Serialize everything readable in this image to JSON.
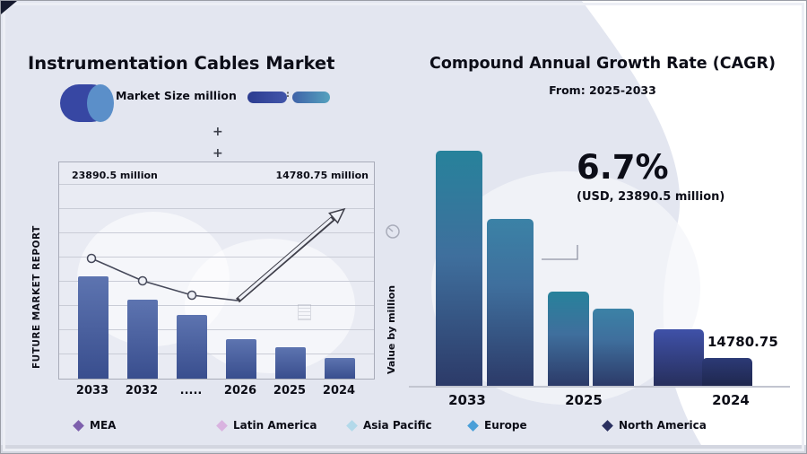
{
  "left": {
    "title": "Instrumentation Cables Market",
    "kicker": "Market Size million",
    "pill_separator": ":",
    "chart_top_left": "23890.5 million",
    "chart_top_right": "14780.75 million"
  },
  "right": {
    "title": "Compound Annual Growth Rate (CAGR)",
    "subtitle": "From: 2025-2033",
    "cagr": "6.7%",
    "cagr_detail": "(USD, 23890.5 million)",
    "axis_label": "Value by million",
    "peak_label": "14780.75"
  },
  "watermark_text": "FUTURE MARKET REPORT",
  "decorations": {
    "plus": "+"
  },
  "legend": [
    {
      "label": "MEA",
      "color": "#7d5fad"
    },
    {
      "label": "Latin America",
      "color": "#d9b3e0"
    },
    {
      "label": "Asia Pacific",
      "color": "#b3d9ea"
    },
    {
      "label": "Europe",
      "color": "#4a9fd8"
    },
    {
      "label": "North America",
      "color": "#2a3060"
    }
  ],
  "chart_data": [
    {
      "id": "market-size-by-year",
      "type": "bar",
      "title": "Instrumentation Cables Market - Market Size million",
      "categories": [
        "2033",
        "2032",
        ".....",
        "2026",
        "2025",
        "2024"
      ],
      "values_relative_pct": [
        100,
        77,
        62,
        39,
        31,
        20
      ],
      "known_values": {
        "2033": 23890.5,
        "2024": 14780.75
      },
      "annotations": {
        "top_left": "23890.5 million",
        "top_right": "14780.75 million"
      },
      "trend": "line with circle markers descending over first three bars, then outlined arrow rising to top-right value",
      "ylabel": "",
      "grid": true,
      "legend_position": "none"
    },
    {
      "id": "cagr-grouped-bars",
      "type": "bar",
      "title": "Compound Annual Growth Rate (CAGR) From: 2025-2033",
      "cagr_pct": 6.7,
      "usd_million": 23890.5,
      "categories": [
        "2033",
        "2025",
        "2024"
      ],
      "groups": [
        {
          "category": "2033",
          "palette": "teal",
          "bars_relative_pct": [
            100,
            71
          ]
        },
        {
          "category": "2025",
          "palette": "teal",
          "bars_relative_pct": [
            40,
            33
          ]
        },
        {
          "category": "2024",
          "palette": "blue",
          "bars_relative_pct": [
            24,
            12
          ]
        }
      ],
      "data_labels": {
        "2024": "14780.75"
      },
      "ylabel": "Value by million",
      "grid": false,
      "legend_position": "bottom"
    }
  ],
  "colors": {
    "bg": "#e3e6f0",
    "ink": "#0c0d17",
    "panel": "#e9ebf3",
    "grid": "#c9ccd6",
    "box-border": "#a9acb9",
    "bar-left-top": "#5d74b0",
    "bar-left-bottom": "#394e8e",
    "teal-top": "#27829b",
    "teal-mid": "#3f6f9d",
    "tealb-top": "#3b82a6",
    "navy-bottom": "#2c3a68",
    "blue-a-top": "#3f51a8",
    "blue-a-bottom": "#272f5c",
    "blue-b-top": "#2c3a76",
    "blue-b-bottom": "#1f274e",
    "cyl-body": "#3747a3",
    "cyl-cap": "#5b8fc9",
    "pill1-a": "#2c3c90",
    "pill1-b": "#4256aa",
    "pill2-a": "#3f62a8",
    "pill2-b": "#55a2be"
  }
}
